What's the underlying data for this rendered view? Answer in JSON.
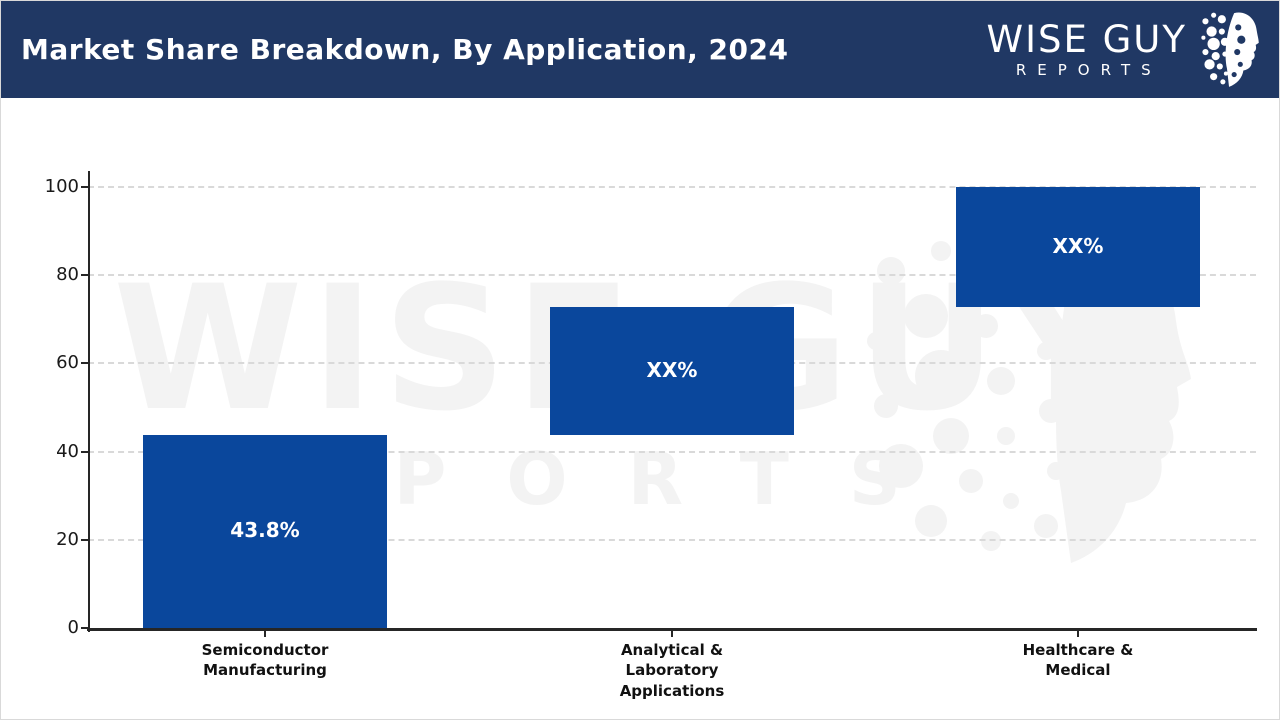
{
  "header": {
    "title": "Market Share Breakdown, By Application, 2024",
    "logo": {
      "name": "WISE GUY",
      "sub": "REPORTS"
    }
  },
  "watermark": {
    "big": "WISE GUY",
    "sub": "REPORTS"
  },
  "chart_data": {
    "type": "bar",
    "variant": "floating-segment-breakdown",
    "title": "Market Share Breakdown, By Application, 2024",
    "categories": [
      "Semiconductor\nManufacturing",
      "Analytical &\nLaboratory\nApplications",
      "Healthcare &\nMedical"
    ],
    "segments": [
      {
        "category": "Semiconductor Manufacturing",
        "start": 0,
        "end": 43.8,
        "label": "43.8%"
      },
      {
        "category": "Analytical & Laboratory Applications",
        "start": 43.8,
        "end": 72.8,
        "label": "XX%"
      },
      {
        "category": "Healthcare & Medical",
        "start": 72.8,
        "end": 100,
        "label": "XX%"
      }
    ],
    "ylim": [
      0,
      100
    ],
    "yticks": [
      0,
      20,
      40,
      60,
      80,
      100
    ],
    "grid": "dashed horizontal",
    "legend": "none",
    "xlabel": "",
    "ylabel": ""
  },
  "colors": {
    "header_bg": "#203864",
    "bar": "#0a479c",
    "bar_label": "#ffffff",
    "axis": "#262626",
    "grid": "#d9d9d9",
    "tick_text": "#1a1a1a",
    "watermark": "#f3f3f3"
  }
}
